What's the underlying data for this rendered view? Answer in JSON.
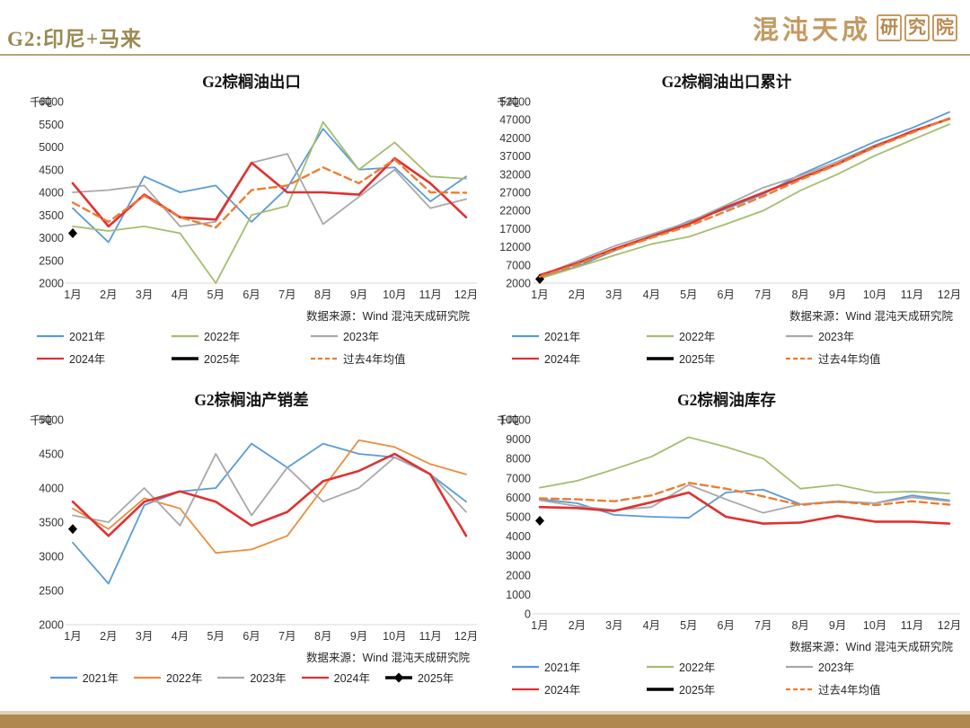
{
  "page": {
    "title": "G2:印尼+马来",
    "logo_main": "混沌天成",
    "logo_seal": [
      "研",
      "究",
      "院"
    ],
    "accent_gold": "#9a8a52",
    "footer_bar_color": "#b0884f"
  },
  "chart_data": [
    {
      "type": "line",
      "title": "G2棕榈油出口",
      "ylabel": "千吨",
      "source": "数据来源：Wind  混沌天成研究院",
      "ylim": [
        2000,
        6000
      ],
      "y_ticks": [
        2000,
        2500,
        3000,
        3500,
        4000,
        4500,
        5000,
        5500,
        6000
      ],
      "x_labels": [
        "1月",
        "2月",
        "3月",
        "4月",
        "5月",
        "6月",
        "7月",
        "8月",
        "9月",
        "10月",
        "11月",
        "12月"
      ],
      "grid": false,
      "legend_layout": "grid",
      "series": [
        {
          "key": "2021",
          "name": "2021年",
          "color": "#5B9BD5",
          "style": "solid",
          "values": [
            3650,
            2900,
            4350,
            4000,
            4150,
            3350,
            4100,
            5400,
            4500,
            4550,
            3800,
            4350
          ]
        },
        {
          "key": "2022",
          "name": "2022年",
          "color": "#A3BE6E",
          "style": "solid",
          "values": [
            3250,
            3150,
            3250,
            3100,
            2000,
            3500,
            3700,
            5550,
            4500,
            5100,
            4350,
            4300
          ]
        },
        {
          "key": "2023",
          "name": "2023年",
          "color": "#A8A8A8",
          "style": "solid",
          "values": [
            4000,
            4050,
            4150,
            3250,
            3350,
            4650,
            4850,
            3300,
            3900,
            4500,
            3650,
            3850
          ]
        },
        {
          "key": "2024",
          "name": "2024年",
          "color": "#E03131",
          "style": "solid",
          "values": [
            4200,
            3250,
            3950,
            3450,
            3400,
            4650,
            4000,
            4000,
            3950,
            4750,
            4200,
            3450
          ]
        },
        {
          "key": "2025",
          "name": "2025年",
          "color": "#000000",
          "style": "solid",
          "marker": "diamond",
          "values": [
            3100
          ]
        },
        {
          "key": "avg-4yr",
          "name": "过去4年均值",
          "color": "#ED7D31",
          "style": "dashed",
          "values": [
            3775,
            3350,
            3925,
            3450,
            3225,
            4050,
            4150,
            4550,
            4200,
            4725,
            4000,
            3990
          ]
        }
      ]
    },
    {
      "type": "line",
      "title": "G2棕榈油出口累计",
      "ylabel": "千吨",
      "source": "数据来源：Wind  混沌天成研究院",
      "ylim": [
        2000,
        52000
      ],
      "y_ticks": [
        2000,
        7000,
        12000,
        17000,
        22000,
        27000,
        32000,
        37000,
        42000,
        47000,
        52000
      ],
      "x_labels": [
        "1月",
        "2月",
        "3月",
        "4月",
        "5月",
        "6月",
        "7月",
        "8月",
        "9月",
        "10月",
        "11月",
        "12月"
      ],
      "grid": false,
      "legend_layout": "grid",
      "series": [
        {
          "key": "2021",
          "name": "2021年",
          "color": "#5B9BD5",
          "style": "solid",
          "values": [
            3650,
            6550,
            10900,
            14900,
            19050,
            22400,
            26500,
            31900,
            36400,
            40950,
            44750,
            49100
          ]
        },
        {
          "key": "2022",
          "name": "2022年",
          "color": "#A3BE6E",
          "style": "solid",
          "values": [
            3250,
            6400,
            9650,
            12750,
            14750,
            18250,
            21950,
            27500,
            32000,
            37100,
            41450,
            45750
          ]
        },
        {
          "key": "2023",
          "name": "2023年",
          "color": "#A8A8A8",
          "style": "solid",
          "values": [
            4000,
            8050,
            12200,
            15450,
            18800,
            23450,
            28300,
            31600,
            35500,
            40000,
            43650,
            47500
          ]
        },
        {
          "key": "2024",
          "name": "2024年",
          "color": "#E03131",
          "style": "solid",
          "values": [
            4200,
            7450,
            11400,
            14850,
            18250,
            22900,
            26900,
            30900,
            34850,
            39600,
            43800,
            47250
          ]
        },
        {
          "key": "2025",
          "name": "2025年",
          "color": "#000000",
          "style": "solid",
          "marker": "diamond",
          "values": [
            3100
          ]
        },
        {
          "key": "avg-4yr",
          "name": "过去4年均值",
          "color": "#ED7D31",
          "style": "dashed",
          "values": [
            3775,
            7113,
            11038,
            14488,
            17713,
            21750,
            25913,
            30475,
            34688,
            39413,
            43413,
            47400
          ]
        }
      ]
    },
    {
      "type": "line",
      "title": "G2棕榈油产销差",
      "ylabel": "千吨",
      "source": "数据来源：Wind 混沌天成研究院",
      "ylim": [
        2000,
        5000
      ],
      "y_ticks": [
        2000,
        2500,
        3000,
        3500,
        4000,
        4500,
        5000
      ],
      "x_labels": [
        "1月",
        "2月",
        "3月",
        "4月",
        "5月",
        "6月",
        "7月",
        "8月",
        "9月",
        "10月",
        "11月",
        "12月"
      ],
      "grid": false,
      "legend_layout": "row",
      "series": [
        {
          "key": "2021",
          "name": "2021年",
          "color": "#5B9BD5",
          "style": "solid",
          "values": [
            3200,
            2600,
            3750,
            3950,
            4000,
            4650,
            4300,
            4650,
            4500,
            4450,
            4200,
            3800
          ]
        },
        {
          "key": "2022",
          "name": "2022年",
          "color": "#ED8C3C",
          "style": "solid",
          "values": [
            3700,
            3400,
            3850,
            3700,
            3050,
            3100,
            3300,
            4000,
            4700,
            4600,
            4350,
            4200
          ]
        },
        {
          "key": "2023",
          "name": "2023年",
          "color": "#A8A8A8",
          "style": "solid",
          "values": [
            3600,
            3500,
            4000,
            3450,
            4500,
            3600,
            4300,
            3800,
            4000,
            4450,
            4200,
            3650
          ]
        },
        {
          "key": "2024",
          "name": "2024年",
          "color": "#E03131",
          "style": "solid",
          "values": [
            3800,
            3300,
            3800,
            3950,
            3800,
            3450,
            3650,
            4100,
            4250,
            4500,
            4200,
            3300
          ]
        },
        {
          "key": "2025",
          "name": "2025年",
          "color": "#000000",
          "style": "solid",
          "marker": "diamond",
          "values": [
            3400
          ]
        }
      ]
    },
    {
      "type": "line",
      "title": "G2棕榈油库存",
      "ylabel": "千吨",
      "source": "数据来源：Wind  混沌天成研究院",
      "ylim": [
        0,
        10000
      ],
      "y_ticks": [
        0,
        1000,
        2000,
        3000,
        4000,
        5000,
        6000,
        7000,
        8000,
        9000,
        10000
      ],
      "x_labels": [
        "1月",
        "2月",
        "3月",
        "4月",
        "5月",
        "6月",
        "7月",
        "8月",
        "9月",
        "10月",
        "11月",
        "12月"
      ],
      "grid": false,
      "legend_layout": "grid",
      "series": [
        {
          "key": "2021",
          "name": "2021年",
          "color": "#5B9BD5",
          "style": "solid",
          "values": [
            5900,
            5700,
            5100,
            5000,
            4950,
            6250,
            6400,
            5650,
            5800,
            5700,
            6100,
            5850
          ]
        },
        {
          "key": "2022",
          "name": "2022年",
          "color": "#A3BE6E",
          "style": "solid",
          "values": [
            6500,
            6850,
            7450,
            8100,
            9100,
            8600,
            8000,
            6450,
            6650,
            6250,
            6300,
            6200
          ]
        },
        {
          "key": "2023",
          "name": "2023年",
          "color": "#A8A8A8",
          "style": "solid",
          "values": [
            5850,
            5550,
            5350,
            5500,
            6650,
            5900,
            5200,
            5650,
            5750,
            5700,
            6000,
            5800
          ]
        },
        {
          "key": "2024",
          "name": "2024年",
          "color": "#E03131",
          "style": "solid",
          "values": [
            5500,
            5450,
            5300,
            5750,
            6250,
            5000,
            4650,
            4700,
            5050,
            4750,
            4750,
            4650
          ]
        },
        {
          "key": "2025",
          "name": "2025年",
          "color": "#000000",
          "style": "solid",
          "marker": "diamond",
          "values": [
            4800
          ]
        },
        {
          "key": "avg-4yr",
          "name": "过去4年均值",
          "color": "#ED7D31",
          "style": "dashed",
          "values": [
            5950,
            5900,
            5800,
            6100,
            6750,
            6450,
            6050,
            5600,
            5800,
            5600,
            5800,
            5625
          ]
        }
      ]
    }
  ]
}
